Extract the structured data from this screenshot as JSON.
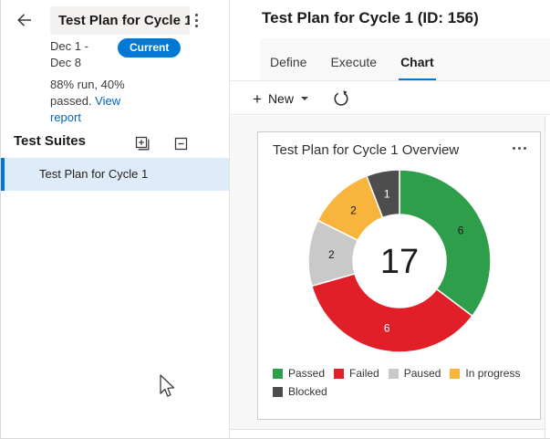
{
  "left_panel": {
    "plan_title": "Test Plan for Cycle 1",
    "date_range": "Dec 1 - Dec 8",
    "current_badge": "Current",
    "stats_text": "88% run, 40% passed.",
    "view_report_label": "View report",
    "suites_header": "Test Suites",
    "suite_item": "Test Plan for Cycle 1"
  },
  "main": {
    "page_title": "Test Plan for Cycle 1 (ID: 156)",
    "tabs": [
      {
        "label": "Define"
      },
      {
        "label": "Execute"
      },
      {
        "label": "Chart"
      }
    ],
    "active_tab": "Chart",
    "toolbar": {
      "new_label": "New"
    },
    "card_title": "Test Plan for Cycle 1 Overview"
  },
  "chart_data": {
    "type": "pie",
    "subtype": "donut",
    "title": "Test Plan for Cycle 1 Overview",
    "total": 17,
    "center_label": "17",
    "start_angle_deg": 0,
    "direction": "clockwise",
    "legend_position": "bottom",
    "segments": [
      {
        "label": "Passed",
        "value": 6,
        "color": "#2f9e4b",
        "value_label_color": "#1b1b1b"
      },
      {
        "label": "Failed",
        "value": 6,
        "color": "#e11f28",
        "value_label_color": "#ffffff"
      },
      {
        "label": "Paused",
        "value": 2,
        "color": "#c9c9c9",
        "value_label_color": "#1b1b1b"
      },
      {
        "label": "In progress",
        "value": 2,
        "color": "#f8b43c",
        "value_label_color": "#1b1b1b"
      },
      {
        "label": "Blocked",
        "value": 1,
        "color": "#4d4d4d",
        "value_label_color": "#ffffff"
      }
    ]
  },
  "colors": {
    "accent": "#0078d4",
    "selection_bg": "#deecf9",
    "link": "#0067b8"
  }
}
